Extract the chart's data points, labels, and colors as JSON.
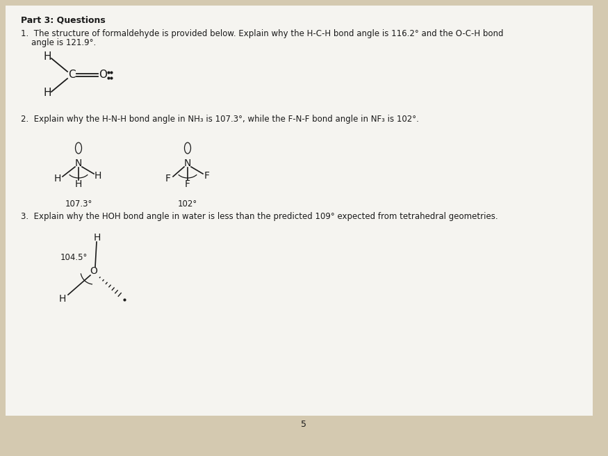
{
  "bg_color": "#d4c9b0",
  "paper_color": "#f2f1ee",
  "text_color": "#1a1a1a",
  "title": "Part 3: Questions",
  "q1_line1": "1.  The structure of formaldehyde is provided below. Explain why the H-C-H bond angle is 116.2° and the O-C-H bond",
  "q1_line2": "    angle is 121.9°.",
  "q2_text": "2.  Explain why the H-N-H bond angle in NH₃ is 107.3°, while the F-N-F bond angle in NF₃ is 102°.",
  "q3_text": "3.  Explain why the HOH bond angle in water is less than the predicted 109° expected from tetrahedral geometries.",
  "page_number": "5",
  "nh3_angle": "107.3°",
  "nf3_angle": "102°",
  "water_angle": "104.5°"
}
